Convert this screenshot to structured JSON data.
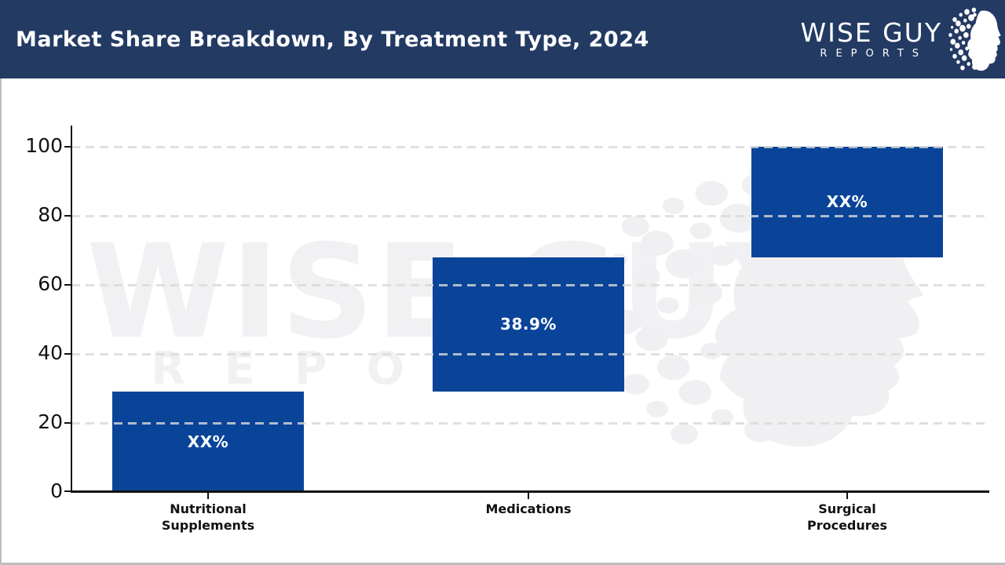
{
  "header": {
    "title": "Market Share Breakdown, By Treatment Type, 2024",
    "logo": {
      "line1": "WISE GUY",
      "line2": "REPORTS"
    }
  },
  "watermark": {
    "line1": "WISE GUY",
    "line2": "REPORTS"
  },
  "chart_data": {
    "type": "bar",
    "subtype": "floating-segment-waterfall",
    "title": "Market Share Breakdown, By Treatment Type, 2024",
    "categories": [
      "Nutritional Supplements",
      "Medications",
      "Surgical Procedures"
    ],
    "segments": [
      {
        "category": "Nutritional Supplements",
        "start": 0,
        "end": 29.1,
        "label": "XX%"
      },
      {
        "category": "Medications",
        "start": 29.1,
        "end": 68,
        "label": "38.9%"
      },
      {
        "category": "Surgical Procedures",
        "start": 68,
        "end": 100,
        "label": "XX%"
      }
    ],
    "yticks": [
      "0",
      "20",
      "40",
      "60",
      "80",
      "100"
    ],
    "ylim": [
      0,
      105
    ],
    "xlabel": "",
    "ylabel": "",
    "grid": "horizontal-dashed",
    "legend": "none",
    "bar_color": "#0a4499",
    "value_label_color": "#ffffff"
  },
  "colors": {
    "header_bg": "#233a63",
    "bar": "#0a4499",
    "grid": "#d9d9d9",
    "axis": "#111111",
    "watermark": "#f1f1f4"
  }
}
